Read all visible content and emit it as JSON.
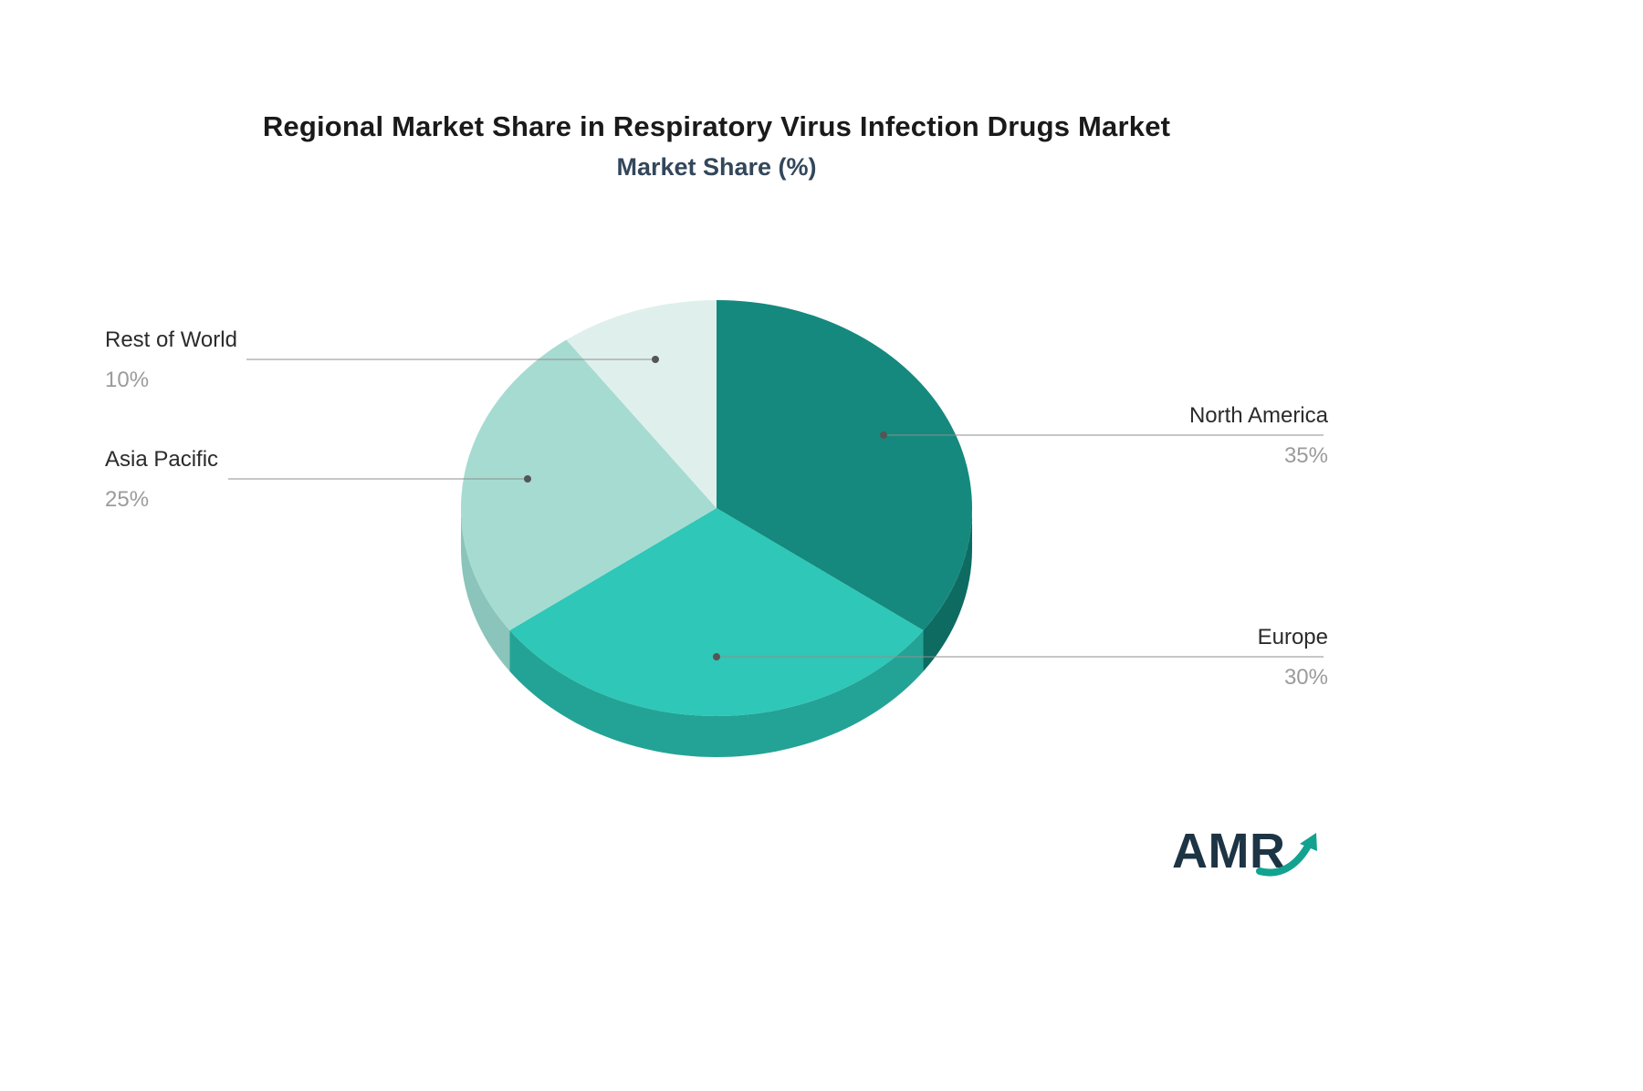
{
  "title": "Regional Market Share in Respiratory Virus Infection Drugs Market",
  "subtitle": "Market Share (%)",
  "logo": {
    "text": "AMR"
  },
  "colors": {
    "accent_teal": "#12a390",
    "logo_navy": "#1d3444",
    "label_text": "#2b2b2b",
    "value_text": "#9b9b9b"
  },
  "chart_data": {
    "type": "pie",
    "title": "Regional Market Share in Respiratory Virus Infection Drugs Market",
    "subtitle": "Market Share (%)",
    "unit": "%",
    "start_angle_deg": 0,
    "direction": "clockwise",
    "style": "3d-pie",
    "slices": [
      {
        "label": "North America",
        "value": 35,
        "color": "#15897e",
        "side_color": "#0d6b62"
      },
      {
        "label": "Europe",
        "value": 30,
        "color": "#2fc7b7",
        "side_color": "#23a395"
      },
      {
        "label": "Asia Pacific",
        "value": 25,
        "color": "#a6dbd2",
        "side_color": "#8bc4ba"
      },
      {
        "label": "Rest of World",
        "value": 10,
        "color": "#dff0ec",
        "side_color": "#c2ded8"
      }
    ]
  }
}
